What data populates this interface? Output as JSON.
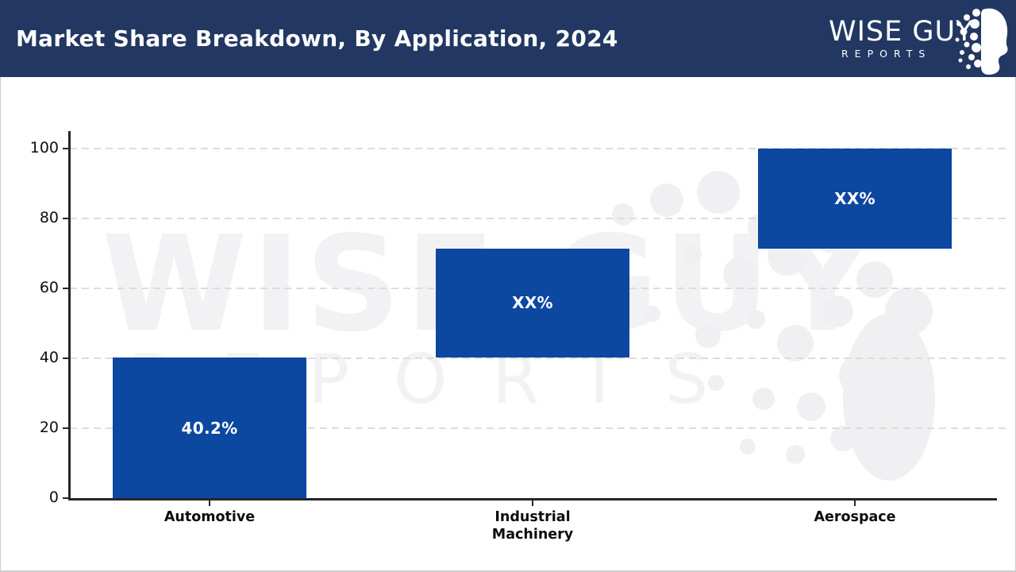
{
  "header": {
    "title": "Market Share Breakdown, By Application, 2024",
    "logo": {
      "line1": "WISE GUY",
      "line2": "REPORTS"
    }
  },
  "watermark": {
    "line1": "WISE GUY",
    "line2": "REPORTS"
  },
  "chart_data": {
    "type": "bar",
    "subtype": "floating-segment-waterfall",
    "title": "Market Share Breakdown, By Application, 2024",
    "categories": [
      "Automotive",
      "Industrial Machinery",
      "Aerospace"
    ],
    "category_display": [
      "Automotive",
      "Industrial\nMachinery",
      "Aerospace"
    ],
    "bars": [
      {
        "category": "Automotive",
        "start": 0,
        "end": 40.2,
        "label": "40.2%"
      },
      {
        "category": "Industrial Machinery",
        "start": 40.2,
        "end": 71.4,
        "label": "XX%"
      },
      {
        "category": "Aerospace",
        "start": 71.4,
        "end": 100,
        "label": "XX%"
      }
    ],
    "ylim": [
      0,
      105
    ],
    "yticks": [
      0,
      20,
      40,
      60,
      80,
      100
    ],
    "xlabel": "",
    "ylabel": "",
    "grid": "horizontal-dashed",
    "legend": "none",
    "colors": {
      "bar": "#0c47a0",
      "bar_label": "#ffffff",
      "header_bg": "#223862",
      "grid": "#dcdcdc",
      "axis": "#262626",
      "watermark": "#f2f2f4"
    }
  }
}
